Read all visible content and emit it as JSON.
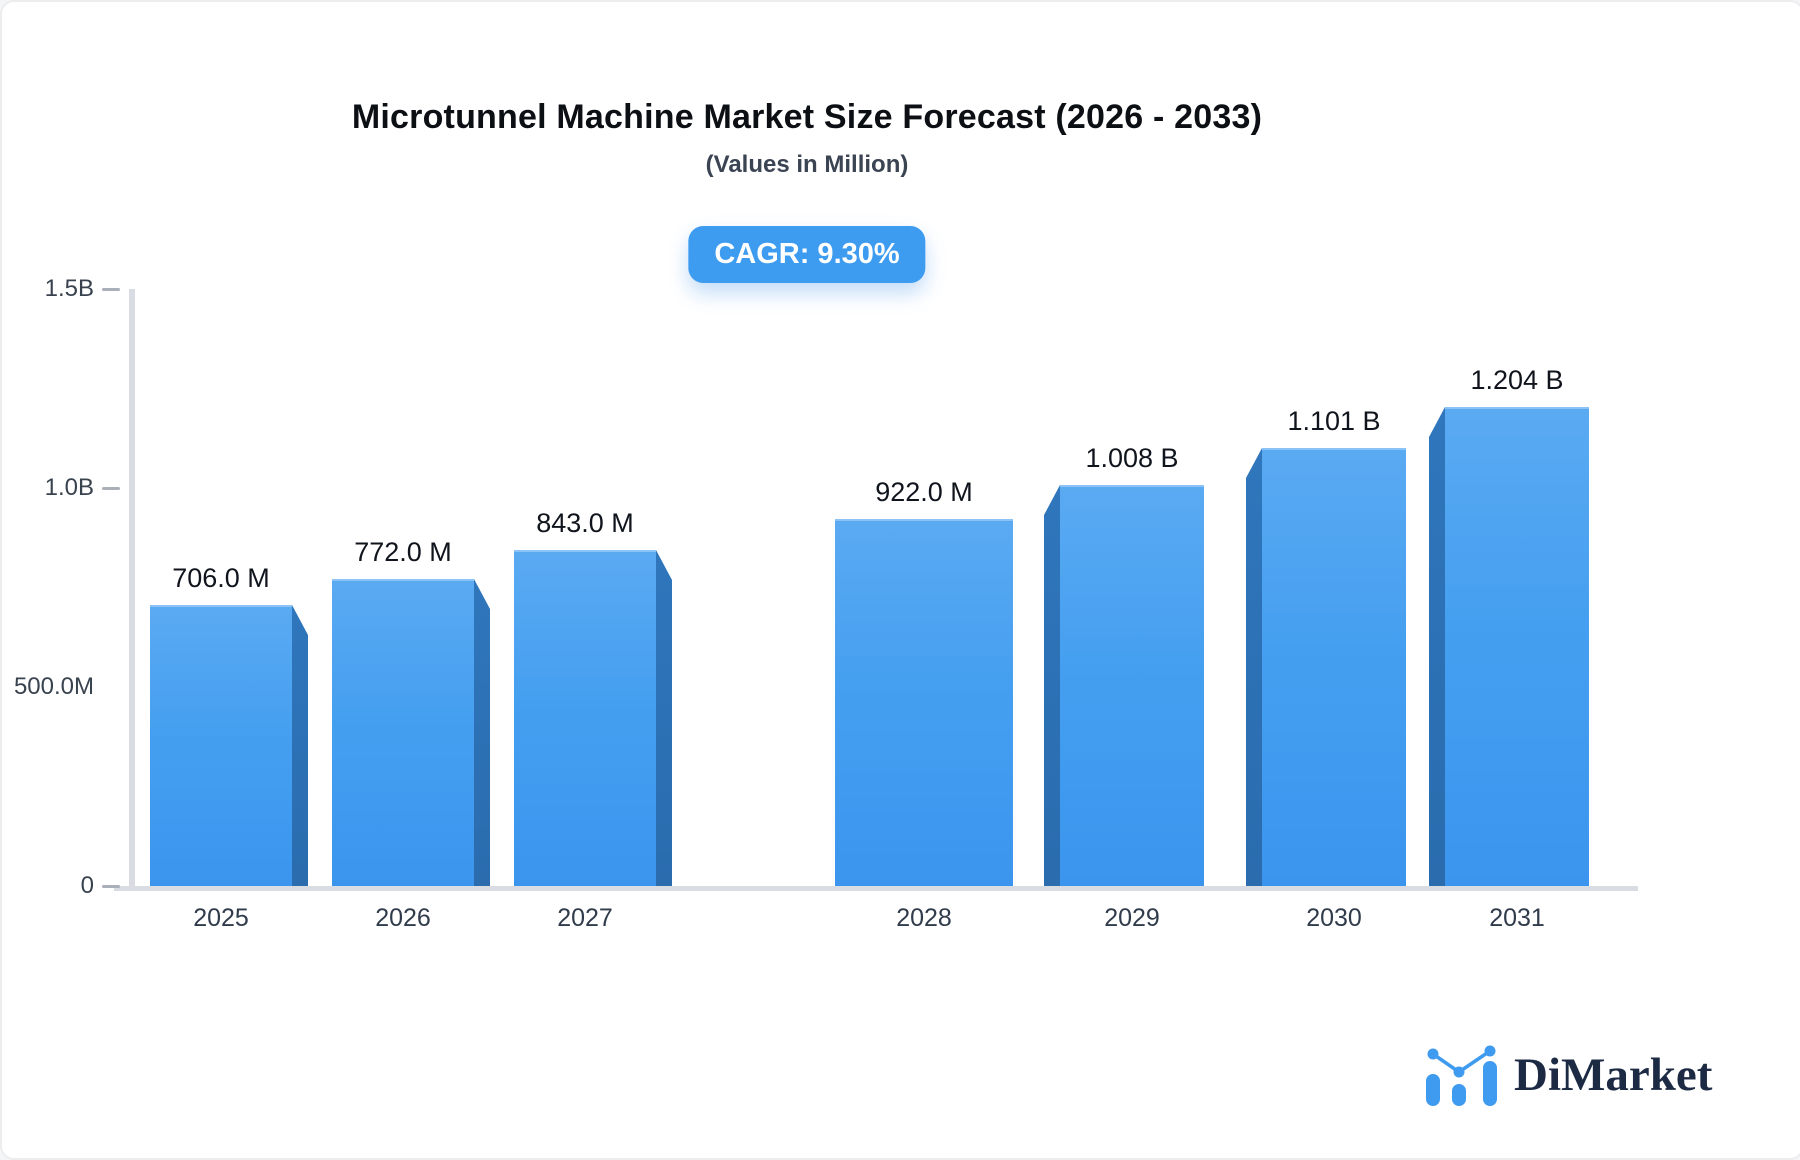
{
  "title": "Microtunnel Machine Market Size Forecast (2026 - 2033)",
  "subtitle": "(Values in Million)",
  "badge": {
    "label": "CAGR: 9.30%",
    "bg_color": "#3d9cf0",
    "text_color": "#ffffff"
  },
  "chart_data": {
    "type": "bar",
    "title": "Microtunnel Machine Market Size Forecast (2026 - 2033)",
    "subtitle": "(Values in Million)",
    "annotation": "CAGR: 9.30%",
    "categories": [
      "2025",
      "2026",
      "2027",
      "2028",
      "2029",
      "2030",
      "2031"
    ],
    "values_millions": [
      706,
      772,
      843,
      922,
      1008,
      1101,
      1204
    ],
    "bar_labels": [
      "706.0 M",
      "772.0 M",
      "843.0 M",
      "922.0 M",
      "1.008 B",
      "1.101 B",
      "1.204 B"
    ],
    "ylim": [
      0,
      1500
    ],
    "yticks": [
      {
        "label": "1.5B",
        "value": 1500,
        "dash": true
      },
      {
        "label": "1.0B",
        "value": 1000,
        "dash": true
      },
      {
        "label": "500.0M",
        "value": 500,
        "dash": false
      },
      {
        "label": "0",
        "value": 0,
        "dash": true
      }
    ],
    "grid": false,
    "legend": false,
    "xlabel": "",
    "ylabel": ""
  },
  "colors": {
    "bar_face": "#3f9aef",
    "bar_side": "#2d72b8",
    "axis": "#d9dce2",
    "badge_bg": "#3d9cf0",
    "logo_blue": "#3f9bef",
    "logo_text": "#1c2a44"
  },
  "logo": {
    "text": "DiMarket"
  }
}
